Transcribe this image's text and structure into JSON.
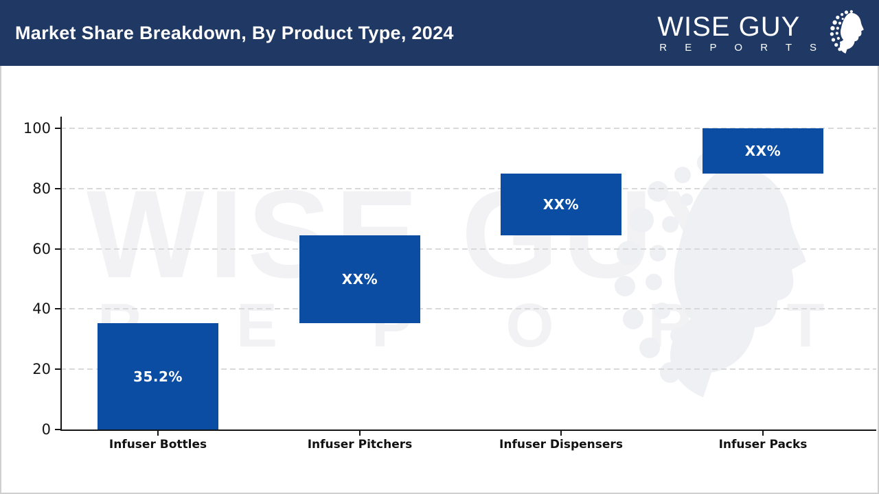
{
  "header": {
    "title": "Market Share Breakdown, By Product Type, 2024",
    "logo": {
      "line1": "WISE GUY",
      "line2": "R E P O R T S"
    }
  },
  "watermark": {
    "line1": "WISE GUY",
    "line2": "R E P O R T S"
  },
  "chart_data": {
    "type": "bar",
    "variant": "floating-stacked-percentage",
    "title": "Market Share Breakdown, By Product Type, 2024",
    "categories": [
      "Infuser Bottles",
      "Infuser Pitchers",
      "Infuser Dispensers",
      "Infuser Packs"
    ],
    "segments": [
      {
        "category": "Infuser Bottles",
        "start": 0,
        "end": 35.2,
        "label": "35.2%"
      },
      {
        "category": "Infuser Pitchers",
        "start": 35.2,
        "end": 64.5,
        "label": "XX%"
      },
      {
        "category": "Infuser Dispensers",
        "start": 64.5,
        "end": 85,
        "label": "XX%"
      },
      {
        "category": "Infuser Packs",
        "start": 85,
        "end": 100,
        "label": "XX%"
      }
    ],
    "ylim": [
      0,
      100
    ],
    "yticks": [
      0,
      20,
      40,
      60,
      80,
      100
    ],
    "xlabel": "",
    "ylabel": "",
    "legend": null,
    "grid": "horizontal-dashed",
    "colors": {
      "bar": "#0b4da2",
      "grid": "#d9d9d9",
      "axis": "#141414",
      "value_label": "#ffffff",
      "header_bg": "#1f3864",
      "watermark": "#f2f2f5"
    }
  }
}
